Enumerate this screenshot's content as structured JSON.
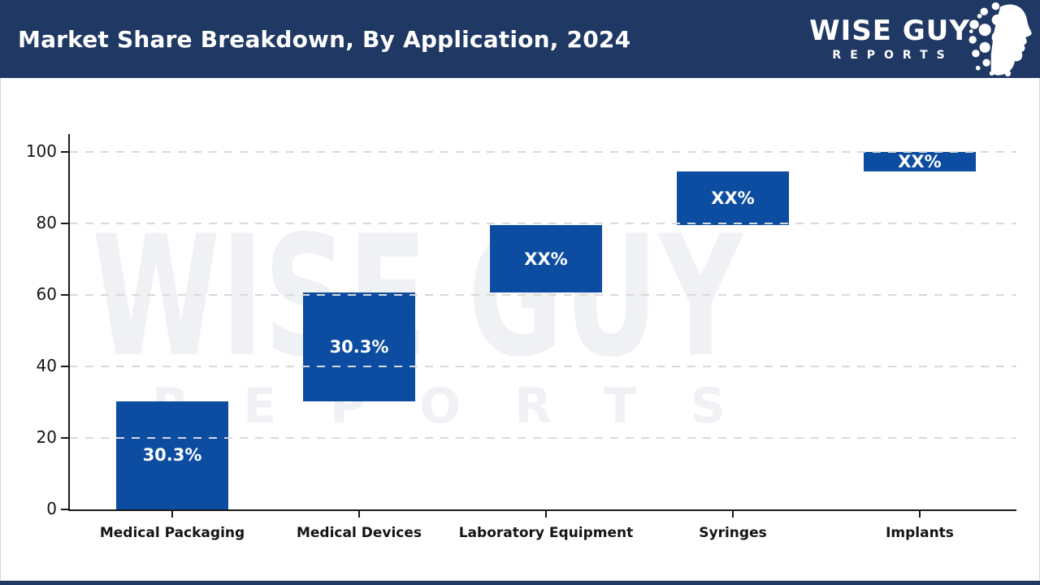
{
  "header": {
    "title": "Market Share Breakdown, By Application, 2024",
    "bg_color": "#1f3864",
    "logo": {
      "line1": "WISE GUY",
      "line2": "REPORTS"
    }
  },
  "watermark": {
    "line1": "WISE GUY",
    "line2": "REPORTS"
  },
  "chart_data": {
    "type": "bar",
    "subtype": "stacked-waterfall",
    "title": "Market Share Breakdown, By Application, 2024",
    "xlabel": "",
    "ylabel": "",
    "categories": [
      "Medical Packaging",
      "Medical Devices",
      "Laboratory Equipment",
      "Syringes",
      "Implants"
    ],
    "bar_labels": [
      "30.3%",
      "30.3%",
      "XX%",
      "XX%",
      "XX%"
    ],
    "values": [
      30.3,
      30.3,
      18.9,
      15.1,
      5.4
    ],
    "cumulative_start": [
      0,
      30.3,
      60.6,
      79.5,
      94.6
    ],
    "cumulative_end": [
      30.3,
      60.6,
      79.5,
      94.6,
      100
    ],
    "yticks": [
      0,
      20,
      40,
      60,
      80,
      100
    ],
    "ylim": [
      0,
      105
    ],
    "grid": "horizontal-dashed",
    "legend": "none",
    "bar_color": "#0c4da2",
    "bar_label_color": "#ffffff",
    "gridline_color": "#d9d9d9",
    "axis_color": "#1a1a1a"
  }
}
